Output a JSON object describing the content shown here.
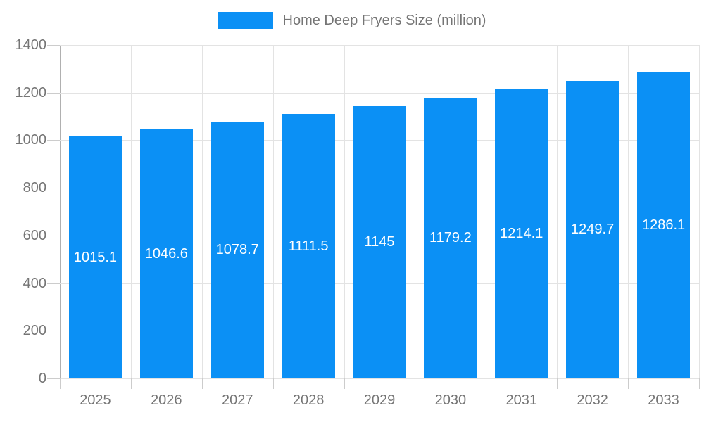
{
  "chart_data": {
    "type": "bar",
    "title": "Home Deep Fryers Size (million)",
    "categories": [
      "2025",
      "2026",
      "2027",
      "2028",
      "2029",
      "2030",
      "2031",
      "2032",
      "2033"
    ],
    "values": [
      1015.1,
      1046.6,
      1078.7,
      1111.5,
      1145,
      1179.2,
      1214.1,
      1249.7,
      1286.1
    ],
    "value_labels": [
      "1015.1",
      "1046.6",
      "1078.7",
      "1111.5",
      "1145",
      "1179.2",
      "1214.1",
      "1249.7",
      "1286.1"
    ],
    "xlabel": "",
    "ylabel": "",
    "ylim": [
      0,
      1400
    ],
    "ytick_step": 200,
    "ytick_labels": [
      "0",
      "200",
      "400",
      "600",
      "800",
      "1000",
      "1200",
      "1400"
    ],
    "legend_position": "top-center",
    "grid": "horizontal and vertical gridlines on",
    "value_label_position": "middle of bar",
    "colors": {
      "bar": "#0b90f5",
      "text": "#757575",
      "grid": "#e3e3e3",
      "axis": "#b0b0b0",
      "tick": "#cccccc",
      "bar_label": "#ffffff",
      "background": "#ffffff"
    }
  }
}
